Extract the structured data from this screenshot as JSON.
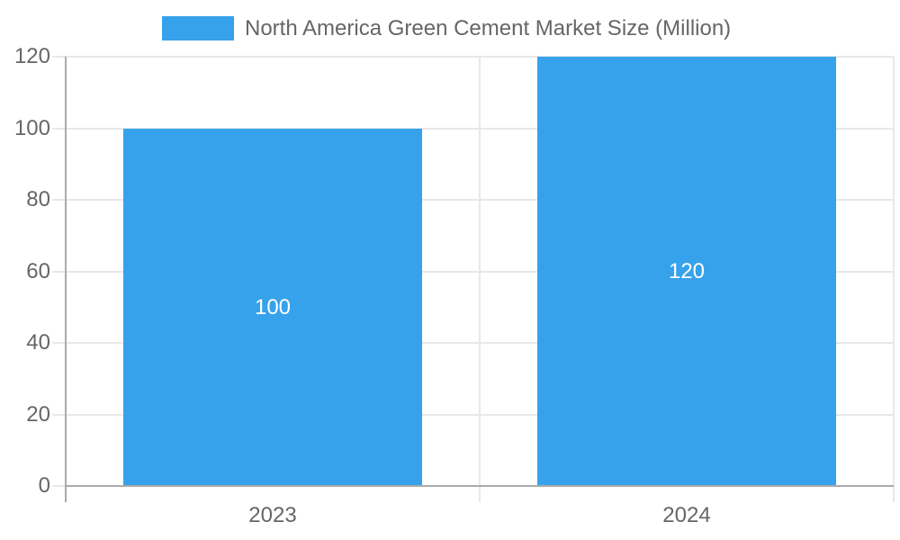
{
  "chart_data": {
    "type": "bar",
    "title": "",
    "xlabel": "",
    "ylabel": "",
    "categories": [
      "2023",
      "2024"
    ],
    "series": [
      {
        "name": "North America Green Cement Market Size (Million)",
        "color": "#36a2eb",
        "values": [
          100,
          120
        ],
        "data_labels": [
          "100",
          "120"
        ]
      }
    ],
    "ylim": [
      0,
      120
    ],
    "yticks": [
      0,
      20,
      40,
      60,
      80,
      100,
      120
    ],
    "ytick_labels": [
      "0",
      "20",
      "40",
      "60",
      "80",
      "100",
      "120"
    ],
    "grid": true,
    "legend_position": "top",
    "data_label_color": "#ffffff",
    "background": "#ffffff"
  },
  "colors": {
    "bar": "#36a2eb",
    "grid_line": "#e8e8e8",
    "axis_line": "#ababab",
    "tick_text": "#666666",
    "bar_label_text": "#ffffff",
    "background": "#ffffff"
  }
}
